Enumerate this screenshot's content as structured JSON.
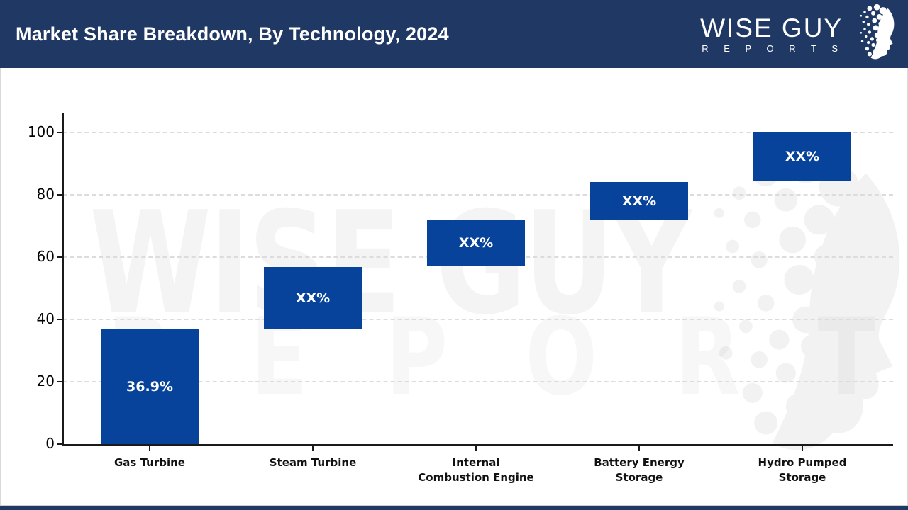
{
  "header": {
    "bg_color": "#203864",
    "title": "Market Share Breakdown, By Technology, 2024",
    "logo": {
      "line1": "WISE GUY",
      "line2": "R E P O R T S"
    }
  },
  "watermark": {
    "line1": "WISE GUY",
    "line2": "R E P O R T S"
  },
  "chart_data": {
    "type": "bar",
    "subtype": "waterfall",
    "title": "Market Share Breakdown, By Technology, 2024",
    "categories": [
      "Gas Turbine",
      "Steam Turbine",
      "Internal Combustion Engine",
      "Battery Energy Storage",
      "Hydro Pumped Storage"
    ],
    "categories_display": [
      [
        "Gas Turbine"
      ],
      [
        "Steam Turbine"
      ],
      [
        "Internal",
        "Combustion Engine"
      ],
      [
        "Battery Energy",
        "Storage"
      ],
      [
        "Hydro Pumped",
        "Storage"
      ]
    ],
    "segments": [
      {
        "category": "Gas Turbine",
        "start": 0,
        "end": 36.9,
        "label": "36.9%"
      },
      {
        "category": "Steam Turbine",
        "start": 37.0,
        "end": 56.8,
        "label": "XX%"
      },
      {
        "category": "Internal Combustion Engine",
        "start": 57.2,
        "end": 71.8,
        "label": "XX%"
      },
      {
        "category": "Battery Energy Storage",
        "start": 71.9,
        "end": 84.1,
        "label": "XX%"
      },
      {
        "category": "Hydro Pumped Storage",
        "start": 84.3,
        "end": 100.2,
        "label": "XX%"
      }
    ],
    "xlabel": "",
    "ylabel": "",
    "yticks": [
      0,
      20,
      40,
      60,
      80,
      100
    ],
    "ylim": [
      0,
      105
    ],
    "grid": "horizontal-dashed",
    "legend": "none",
    "bar_color": "#08439b",
    "bar_label_color": "#ffffff",
    "axis_color": "#1a1a1a",
    "gridline_color": "#dcdcdc"
  },
  "footer": {
    "bg_color": "#203864"
  }
}
